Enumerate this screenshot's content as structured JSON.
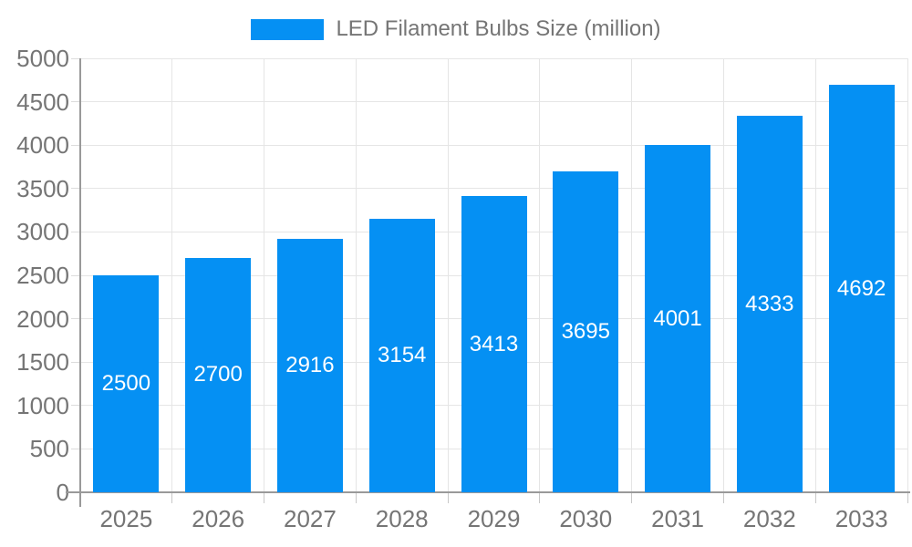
{
  "page": {
    "background": "#ffffff"
  },
  "legend": {
    "label": "LED Filament Bulbs Size (million)"
  },
  "chart_data": {
    "type": "bar",
    "title": "LED Filament Bulbs Size (million)",
    "series_name": "LED Filament Bulbs Size (million)",
    "categories": [
      "2025",
      "2026",
      "2027",
      "2028",
      "2029",
      "2030",
      "2031",
      "2032",
      "2033"
    ],
    "values": [
      2500,
      2700,
      2916,
      3154,
      3413,
      3695,
      4001,
      4333,
      4692
    ],
    "bar_value_labels": [
      "2500",
      "2700",
      "2916",
      "3154",
      "3413",
      "3695",
      "4001",
      "4333",
      "4692"
    ],
    "y_tick_labels": [
      "0",
      "500",
      "1000",
      "1500",
      "2000",
      "2500",
      "3000",
      "3500",
      "4000",
      "4500",
      "5000"
    ],
    "xlabel": "",
    "ylabel": "",
    "ylim": [
      0,
      5000
    ],
    "ytick_step": 500,
    "grid": "on",
    "legend_position": "top-center",
    "bar_color": "#0590f3",
    "bar_value_label_color": "#ffffff",
    "axis_color": "#999999",
    "grid_color": "#e5e5e5",
    "tick_label_color": "#757575"
  }
}
